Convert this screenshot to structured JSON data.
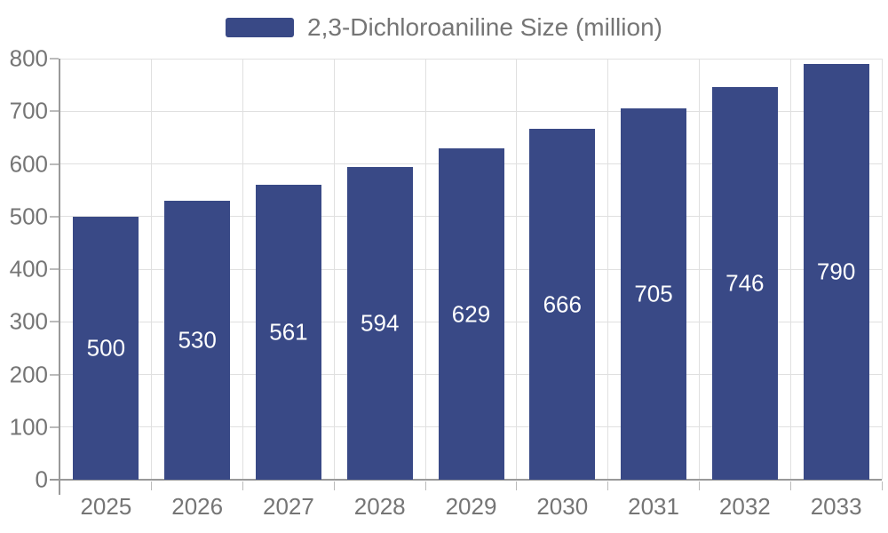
{
  "legend": {
    "label": "2,3-Dichloroaniline Size (million)",
    "swatch_color": "#394986"
  },
  "chart_data": {
    "type": "bar",
    "title": "2,3-Dichloroaniline Size (million)",
    "categories": [
      "2025",
      "2026",
      "2027",
      "2028",
      "2029",
      "2030",
      "2031",
      "2032",
      "2033"
    ],
    "values": [
      500,
      530,
      561,
      594,
      629,
      666,
      705,
      746,
      790
    ],
    "xlabel": "",
    "ylabel": "",
    "ylim": [
      0,
      800
    ],
    "y_ticks": [
      0,
      100,
      200,
      300,
      400,
      500,
      600,
      700,
      800
    ],
    "grid": true,
    "legend_position": "top-center",
    "colors": {
      "bar": "#394986",
      "bar_label": "#ffffff",
      "axis_text": "#757575",
      "axis_line": "#999999",
      "gridline": "#e0e0e0",
      "tick": "#bbbbbb"
    }
  }
}
